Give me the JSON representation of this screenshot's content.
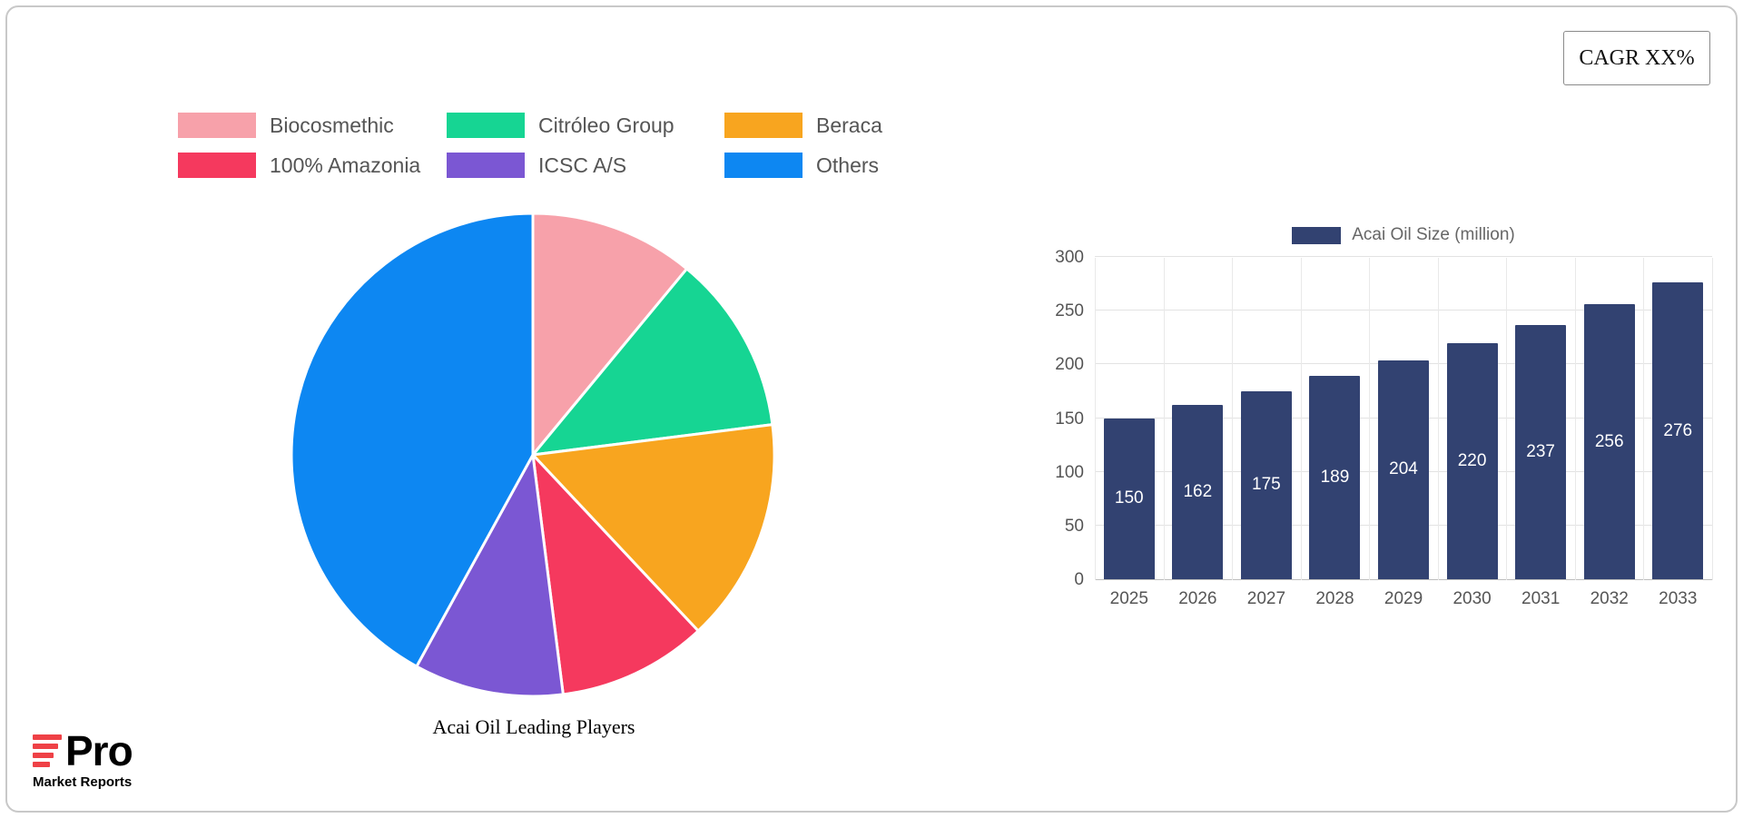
{
  "page": {
    "cagr_label": "CAGR XX%",
    "logo": {
      "name": "Pro",
      "subtitle": "Market Reports"
    }
  },
  "chart_data": [
    {
      "type": "pie",
      "title": "Acai Oil Leading Players",
      "legend_position": "top",
      "slices": [
        {
          "label": "Biocosmethic",
          "value": 11,
          "color": "#f7a1aa"
        },
        {
          "label": "Citróleo Group",
          "value": 12,
          "color": "#16d593"
        },
        {
          "label": "Beraca",
          "value": 15,
          "color": "#f8a51f"
        },
        {
          "label": "100% Amazonia",
          "value": 10,
          "color": "#f5395e"
        },
        {
          "label": "ICSC A/S",
          "value": 10,
          "color": "#7b57d3"
        },
        {
          "label": "Others",
          "value": 42,
          "color": "#0d87f2"
        }
      ]
    },
    {
      "type": "bar",
      "legend_label": "Acai Oil Size (million)",
      "categories": [
        "2025",
        "2026",
        "2027",
        "2028",
        "2029",
        "2030",
        "2031",
        "2032",
        "2033"
      ],
      "values": [
        150,
        162,
        175,
        189,
        204,
        220,
        237,
        256,
        276
      ],
      "bar_color": "#324271",
      "ylim": [
        0,
        300
      ],
      "yticks": [
        0,
        50,
        100,
        150,
        200,
        250,
        300
      ],
      "grid": true,
      "legend_position": "top",
      "value_label_style": "white-inside-bar"
    }
  ]
}
